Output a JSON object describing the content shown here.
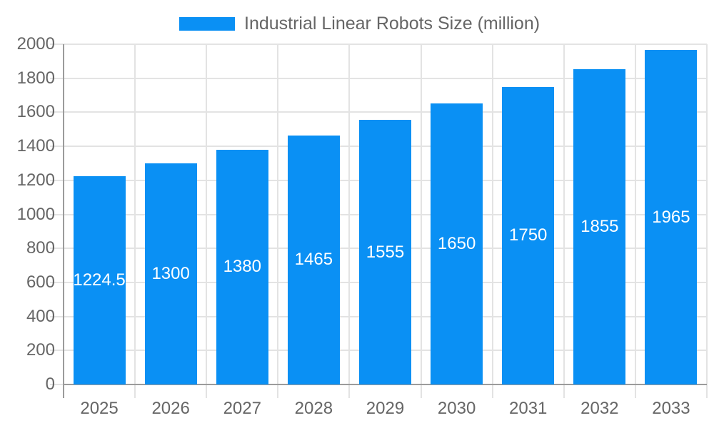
{
  "chart_data": {
    "type": "bar",
    "title": "Industrial Linear Robots Size (million)",
    "legend": {
      "position": "top-center",
      "label": "Industrial Linear Robots Size (million)"
    },
    "categories": [
      "2025",
      "2026",
      "2027",
      "2028",
      "2029",
      "2030",
      "2031",
      "2032",
      "2033"
    ],
    "values": [
      1224.5,
      1300,
      1380,
      1465,
      1555,
      1650,
      1750,
      1855,
      1965
    ],
    "value_labels": [
      "1224.5",
      "1300",
      "1380",
      "1465",
      "1555",
      "1650",
      "1750",
      "1855",
      "1965"
    ],
    "xlabel": "",
    "ylabel": "",
    "ylim": [
      0,
      2000
    ],
    "ytick_step": 200,
    "ytick_labels": [
      "0",
      "200",
      "400",
      "600",
      "800",
      "1000",
      "1200",
      "1400",
      "1600",
      "1800",
      "2000"
    ],
    "grid": true,
    "bar_value_label_position": "inside-center",
    "colors": {
      "bar": "#0a90f4",
      "bar_value_label": "#ffffff",
      "grid": "#e3e3e3",
      "axis": "#9b9b9b",
      "tick_text": "#666666",
      "legend_text": "#666666",
      "background": "#ffffff"
    }
  }
}
